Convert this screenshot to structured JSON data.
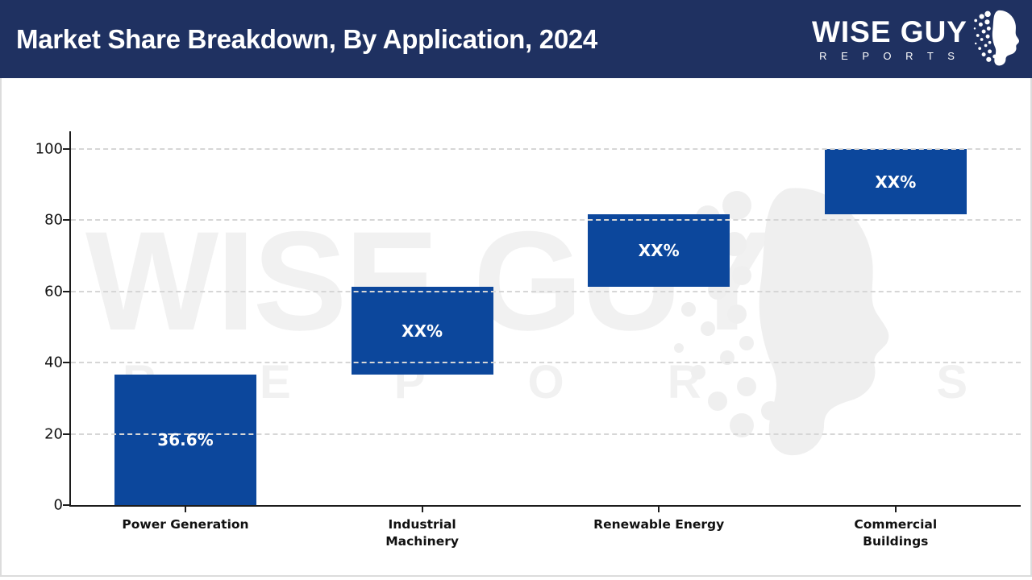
{
  "header": {
    "title": "Market Share Breakdown, By Application, 2024"
  },
  "logo": {
    "line1": "WISE GUY",
    "line2": "R E P O R T S",
    "head_icon": "dotted-face-profile"
  },
  "watermark": {
    "line1": "WISE GUY",
    "line2": "R E P O R T S",
    "head_icon": "dotted-face-profile"
  },
  "colors": {
    "header_bg": "#1f3161",
    "bar_blue": "#0c479c",
    "grid": "#d6d6d6",
    "axis": "#1c1c1c",
    "bar_label_text": "#ffffff",
    "watermark": "#f1f1f1",
    "frame_border": "#dcdcdc"
  },
  "chart_data": {
    "type": "bar",
    "subtype": "stacked-percentage-waterfall",
    "title": "Market Share Breakdown, By Application, 2024",
    "categories": [
      "Power Generation",
      "Industrial Machinery",
      "Renewable Energy",
      "Commercial Buildings"
    ],
    "category_lines": [
      [
        "Power Generation"
      ],
      [
        "Industrial",
        "Machinery"
      ],
      [
        "Renewable Energy"
      ],
      [
        "Commercial",
        "Buildings"
      ]
    ],
    "segments": [
      {
        "category": "Power Generation",
        "start": 0,
        "end": 36.6,
        "label": "36.6%"
      },
      {
        "category": "Industrial Machinery",
        "start": 36.6,
        "end": 61.2,
        "label": "XX%"
      },
      {
        "category": "Renewable Energy",
        "start": 61.2,
        "end": 81.6,
        "label": "XX%"
      },
      {
        "category": "Commercial Buildings",
        "start": 81.6,
        "end": 100,
        "label": "XX%"
      }
    ],
    "xlabel": "",
    "ylabel": "",
    "ylim": [
      0,
      105
    ],
    "yticks": [
      0,
      20,
      40,
      60,
      80,
      100
    ],
    "ytick_labels": [
      "0",
      "20",
      "40",
      "60",
      "80",
      "100"
    ],
    "grid": "horizontal dashed",
    "legend": "none"
  }
}
